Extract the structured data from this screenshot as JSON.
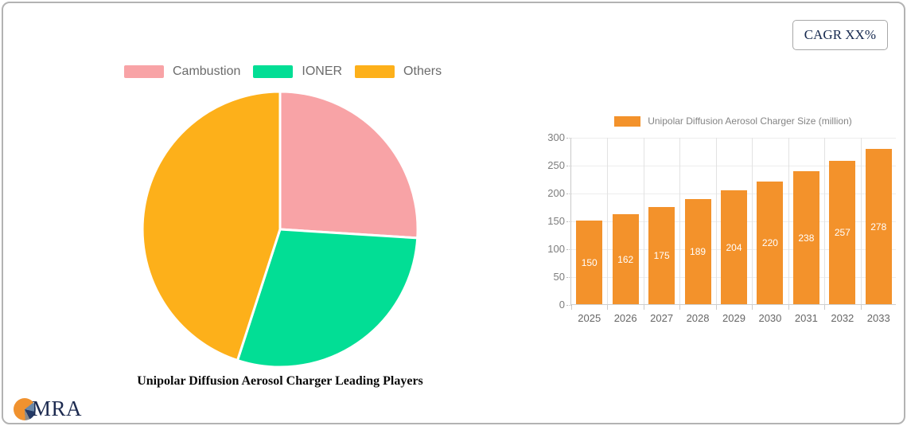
{
  "card": {
    "cagr_label": "CAGR XX%"
  },
  "logo": {
    "text": "MRA"
  },
  "chart_data": [
    {
      "type": "pie",
      "title": "Unipolar Diffusion Aerosol Charger Leading Players",
      "legend_position": "top",
      "start_angle_deg": 0,
      "slices": [
        {
          "label": "Cambustion",
          "value": 26,
          "color": "#F8A3A6"
        },
        {
          "label": "IONER",
          "value": 29,
          "color": "#02DE95"
        },
        {
          "label": "Others",
          "value": 45,
          "color": "#FDB01A"
        }
      ]
    },
    {
      "type": "bar",
      "legend": "Unipolar Diffusion Aerosol Charger Size (million)",
      "categories": [
        "2025",
        "2026",
        "2027",
        "2028",
        "2029",
        "2030",
        "2031",
        "2032",
        "2033"
      ],
      "values": [
        150,
        162,
        175,
        189,
        204,
        220,
        238,
        257,
        278
      ],
      "ylim": [
        0,
        300
      ],
      "ytick_step": 50,
      "yticks": [
        0,
        50,
        100,
        150,
        200,
        250,
        300
      ],
      "bar_color": "#F3922B",
      "value_label_color": "#ffffff",
      "grid": true
    }
  ],
  "colors": {
    "accent_navy": "#1d2b50",
    "card_border": "#b3b3b3",
    "grid_line": "#e2e2e2",
    "axis_text": "#7d7d7d"
  }
}
